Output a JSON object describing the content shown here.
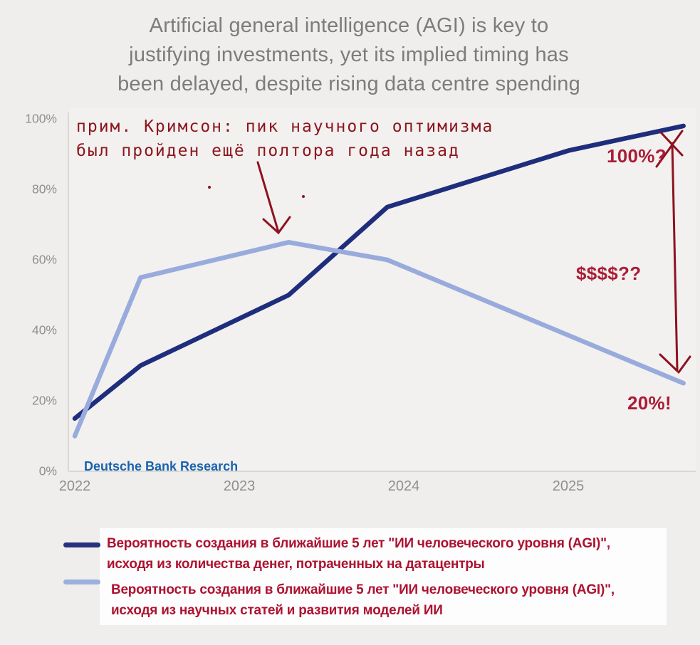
{
  "title": {
    "lines": [
      "Artificial general intelligence (AGI) is key to",
      "justifying investments, yet its implied timing has",
      "been delayed, despite rising data centre spending"
    ]
  },
  "source": "Deutsche Bank Research",
  "annotations": {
    "note_line1": "прим. Кримсон: пик научного оптимизма",
    "note_line2": "был пройден ещё полтора года назад",
    "top_label": "100%?",
    "mid_label": "$$$$??",
    "bottom_label": "20%!",
    "note_color": "#8c151d",
    "label_color": "#ab1c36",
    "arrow_color": "#8e1220"
  },
  "legend": {
    "text_color": "#ad1230",
    "items": [
      {
        "swatch_color": "#27317c",
        "line1": "Вероятность создания в ближайшие 5 лет \"ИИ человеческого уровня (AGI)\",",
        "line2": "исходя из количества денег, потраченных на датацентры"
      },
      {
        "swatch_color": "#9cb0de",
        "line1": "Вероятность создания в ближайшие 5 лет \"ИИ человеческого уровня (AGI)\",",
        "line2": "исходя из научных статей и развития моделей ИИ"
      }
    ]
  },
  "chart_data": {
    "type": "line",
    "title": "Artificial general intelligence (AGI) is key to justifying investments, yet its implied timing has been delayed, despite rising data centre spending",
    "xlabel": "",
    "ylabel": "",
    "xlim": [
      2022,
      2025.75
    ],
    "ylim": [
      0,
      100
    ],
    "grid": false,
    "legend_position": "bottom",
    "x_ticks": [
      2022,
      2023,
      2024,
      2025
    ],
    "x_tick_labels": [
      "2022",
      "2023",
      "2024",
      "2025"
    ],
    "y_ticks": [
      0,
      20,
      40,
      60,
      80,
      100
    ],
    "y_tick_labels": [
      "0%",
      "20%",
      "40%",
      "60%",
      "80%",
      "100%"
    ],
    "series": [
      {
        "name": "Вероятность создания в ближайшие 5 лет \"ИИ человеческого уровня (AGI)\", исходя из количества денег, потраченных на датацентры",
        "color": "#1e2e7d",
        "points": [
          [
            2022.0,
            15
          ],
          [
            2022.4,
            30
          ],
          [
            2023.3,
            50
          ],
          [
            2023.9,
            75
          ],
          [
            2025.0,
            91
          ],
          [
            2025.7,
            98
          ]
        ]
      },
      {
        "name": "Вероятность создания в ближайшие 5 лет \"ИИ человеческого уровня (AGI)\", исходя из научных статей и развития моделей ИИ",
        "color": "#98abdc",
        "points": [
          [
            2022.0,
            10
          ],
          [
            2022.4,
            55
          ],
          [
            2023.3,
            65
          ],
          [
            2023.9,
            60
          ],
          [
            2025.7,
            25
          ]
        ]
      }
    ]
  }
}
